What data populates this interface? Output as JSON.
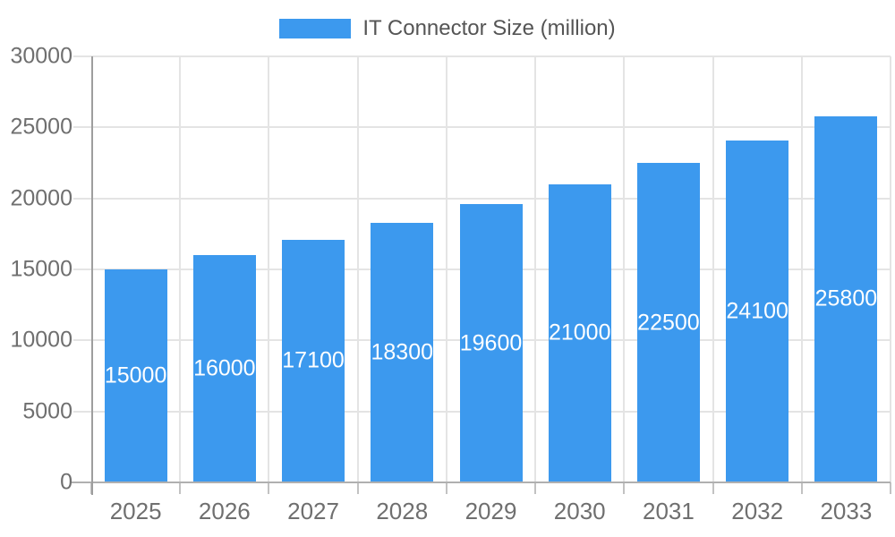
{
  "chart_data": {
    "type": "bar",
    "title": "IT Connector Size (million)",
    "legend_position": "top-center",
    "categories": [
      "2025",
      "2026",
      "2027",
      "2028",
      "2029",
      "2030",
      "2031",
      "2032",
      "2033"
    ],
    "series": [
      {
        "name": "IT Connector Size (million)",
        "values": [
          15000,
          16000,
          17100,
          18300,
          19600,
          21000,
          22500,
          24100,
          25800
        ]
      }
    ],
    "value_labels": [
      "15000",
      "16000",
      "17100",
      "18300",
      "19600",
      "21000",
      "22500",
      "24100",
      "25800"
    ],
    "xlabel": "",
    "ylabel": "",
    "ylim": [
      0,
      30000
    ],
    "ytick_step": 5000,
    "ytick_labels": [
      "0",
      "5000",
      "10000",
      "15000",
      "20000",
      "25000",
      "30000"
    ],
    "grid": true,
    "colors": {
      "bar": "#3c99ee",
      "value_label": "#ffffff",
      "gridline": "#e4e4e4",
      "axis_line": "#9e9e9e",
      "baseline": "#b0b0b0",
      "tick_label": "#6f6f6f",
      "legend_text": "#555555",
      "background": "#ffffff"
    }
  }
}
